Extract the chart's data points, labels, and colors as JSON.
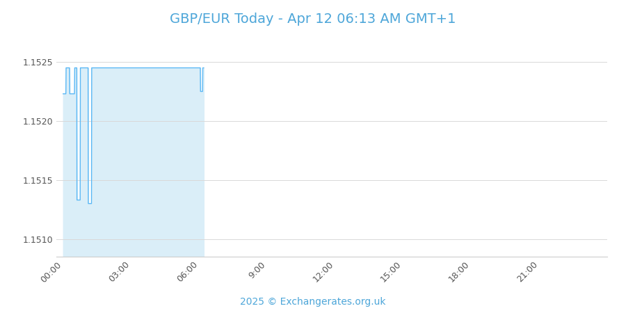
{
  "title": "GBP/EUR Today - Apr 12 06:13 AM GMT+1",
  "title_color": "#4da6d9",
  "title_fontsize": 14,
  "footer": "2025 © Exchangerates.org.uk",
  "footer_color": "#4da6d9",
  "footer_fontsize": 10,
  "ylim": [
    1.15085,
    1.15268
  ],
  "yticks": [
    1.151,
    1.1515,
    1.152,
    1.1525
  ],
  "xticks": [
    0,
    3,
    6,
    9,
    12,
    15,
    18,
    21
  ],
  "xlim": [
    -0.3,
    24
  ],
  "xtick_labels": [
    "00:00",
    "03:00",
    "06:00",
    "9:00",
    "12:00",
    "15:00",
    "18:00",
    "21:00"
  ],
  "line_color": "#5bb8f5",
  "fill_color": "#daeef8",
  "bg_color": "#ffffff",
  "grid_color": "#d8d8d8",
  "x": [
    0.0,
    0.12,
    0.13,
    0.28,
    0.29,
    0.5,
    0.51,
    0.6,
    0.61,
    0.75,
    0.76,
    1.1,
    1.11,
    1.25,
    1.26,
    6.05,
    6.06,
    6.15,
    6.16,
    6.2
  ],
  "y": [
    1.15223,
    1.15223,
    1.15245,
    1.15245,
    1.15223,
    1.15223,
    1.15245,
    1.15245,
    1.15133,
    1.15133,
    1.15245,
    1.15245,
    1.1513,
    1.1513,
    1.15245,
    1.15245,
    1.15225,
    1.15225,
    1.15245,
    1.15245
  ],
  "baseline": 1.15085
}
